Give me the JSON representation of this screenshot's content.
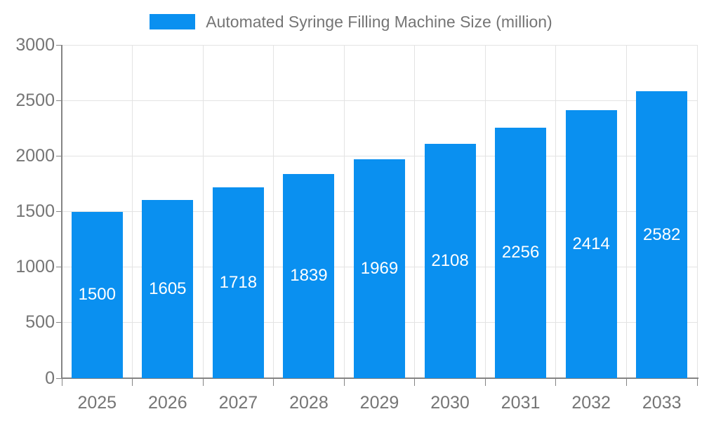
{
  "chart_data": {
    "type": "bar",
    "title": "Automated Syringe Filling Machine Size (million)",
    "categories": [
      "2025",
      "2026",
      "2027",
      "2028",
      "2029",
      "2030",
      "2031",
      "2032",
      "2033"
    ],
    "values": [
      1500,
      1605,
      1718,
      1839,
      1969,
      2108,
      2256,
      2414,
      2582
    ],
    "xlabel": "",
    "ylabel": "",
    "ylim": [
      0,
      3000
    ],
    "yticks": [
      0,
      500,
      1000,
      1500,
      2000,
      2500,
      3000
    ],
    "grid": true,
    "legend_position": "top",
    "bar_labels_inside": true,
    "colors": {
      "bar": "#0a90f0",
      "bar_label": "#ffffff",
      "grid": "#e3e3e3",
      "axis": "#848484",
      "tick_label": "#757575",
      "legend_text": "#757575",
      "background": "#ffffff"
    }
  }
}
